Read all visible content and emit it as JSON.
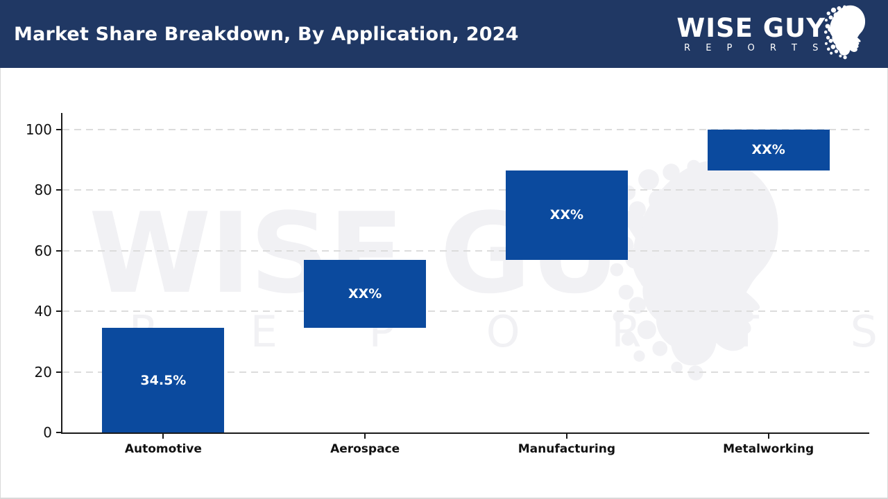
{
  "header": {
    "title": "Market Share Breakdown, By Application, 2024",
    "brand": {
      "line1": "WISE GUY",
      "line2": "R E P O R T S"
    }
  },
  "watermark": {
    "line1": "WISE GUY",
    "line2": "R E P O R T S"
  },
  "chart_data": {
    "type": "bar",
    "subtype": "waterfall",
    "title": "Market Share Breakdown, By Application, 2024",
    "categories": [
      "Automotive",
      "Aerospace",
      "Manufacturing",
      "Metalworking"
    ],
    "series": [
      {
        "name": "Market Share",
        "segments": [
          {
            "category": "Automotive",
            "start": 0,
            "end": 34.5,
            "label": "34.5%"
          },
          {
            "category": "Aerospace",
            "start": 34.5,
            "end": 57,
            "label": "XX%"
          },
          {
            "category": "Manufacturing",
            "start": 57,
            "end": 86.5,
            "label": "XX%"
          },
          {
            "category": "Metalworking",
            "start": 86.5,
            "end": 100,
            "label": "XX%"
          }
        ]
      }
    ],
    "xlabel": "",
    "ylabel": "",
    "ylim": [
      0,
      100
    ],
    "yticks": [
      0,
      20,
      40,
      60,
      80,
      100
    ],
    "grid": "horizontal-dashed",
    "legend": "none"
  },
  "colors": {
    "header_bg": "#203864",
    "bar": "#0b4a9e",
    "grid": "#dcdcdc",
    "axis": "#1a1a1a",
    "watermark": "#f1f1f4",
    "label_on_bar": "#ffffff"
  }
}
